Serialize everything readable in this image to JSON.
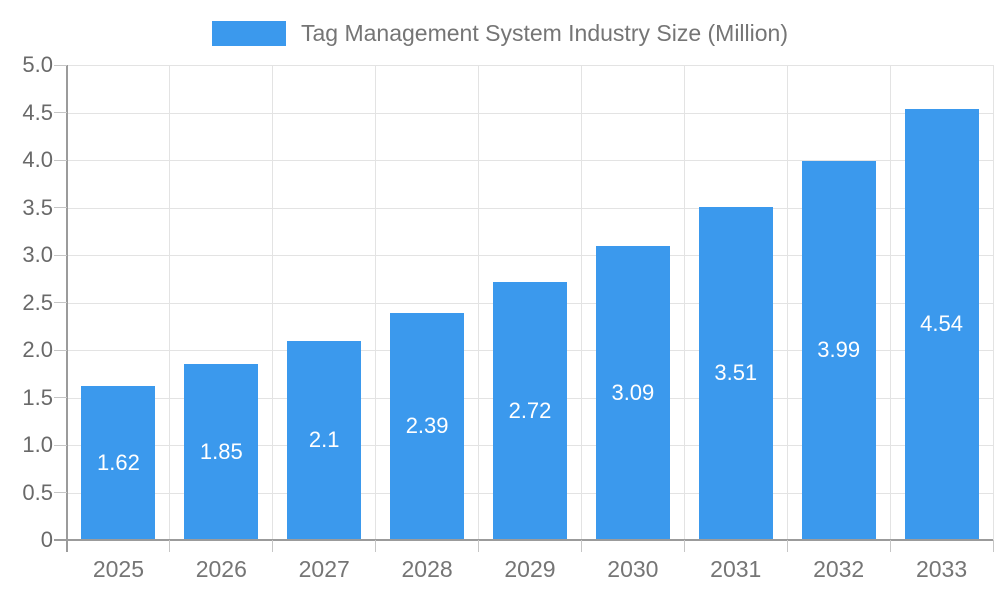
{
  "chart_data": {
    "type": "bar",
    "title": "Tag Management System Industry Size (Million)",
    "legend": "Tag Management System Industry Size (Million)",
    "legend_position": "top-center",
    "categories": [
      "2025",
      "2026",
      "2027",
      "2028",
      "2029",
      "2030",
      "2031",
      "2032",
      "2033"
    ],
    "values": [
      1.62,
      1.85,
      2.1,
      2.39,
      2.72,
      3.09,
      3.51,
      3.99,
      4.54
    ],
    "value_labels": [
      "1.62",
      "1.85",
      "2.1",
      "2.39",
      "2.72",
      "3.09",
      "3.51",
      "3.99",
      "4.54"
    ],
    "xlabel": "",
    "ylabel": "",
    "ylim": [
      0,
      5
    ],
    "y_tick_step": 0.5,
    "y_tick_labels": [
      "0",
      "0.5",
      "1.0",
      "1.5",
      "2.0",
      "2.5",
      "3.0",
      "3.5",
      "4.0",
      "4.5",
      "5.0"
    ],
    "grid": "horizontal and vertical gridlines on",
    "colors": {
      "bar": "#3B99ED",
      "grid": "#E3E3E3",
      "axis": "#9B9B9B",
      "tick": "#C6C6C6",
      "y_label_text": "#696969",
      "x_label_text": "#757575",
      "legend_text": "#757575",
      "value_label_text": "#FFFFFF",
      "background": "#FFFFFF"
    }
  }
}
